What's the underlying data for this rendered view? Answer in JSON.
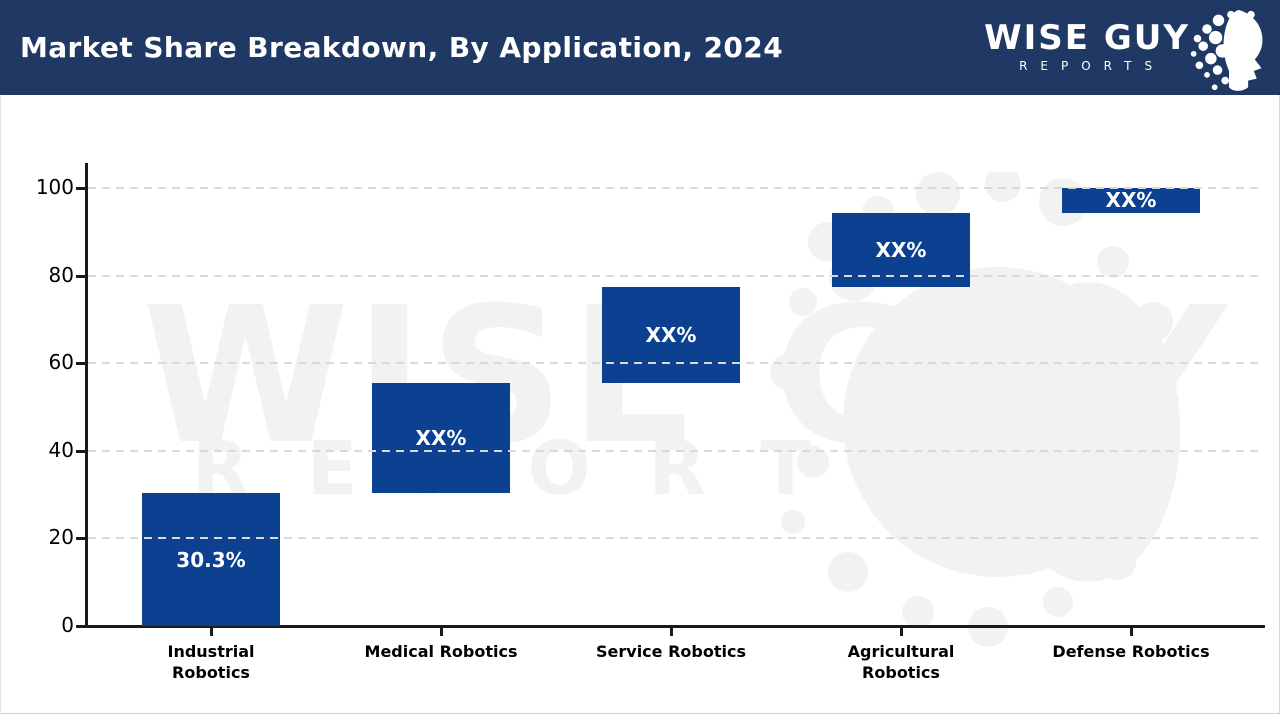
{
  "header": {
    "title": "Market Share Breakdown, By Application, 2024",
    "bg_color": "#1f3864",
    "logo": {
      "line1": "WISE GUY",
      "line2": "REPORTS",
      "head_icon": "dotted-head-profile"
    }
  },
  "watermark": {
    "line1": "WISE GUY",
    "line2": "REPORTS",
    "color": "#f2f2f3"
  },
  "chart_data": {
    "type": "bar",
    "subtype": "waterfall",
    "title": "Market Share Breakdown, By Application, 2024",
    "xlabel": "",
    "ylabel": "",
    "ylim": [
      0,
      105
    ],
    "y_ticks": [
      0,
      20,
      40,
      60,
      80,
      100
    ],
    "grid": "dashed-horizontal",
    "legend": "none",
    "bar_color": "#0c4192",
    "value_label_color": "#ffffff",
    "categories": [
      "Industrial Robotics",
      "Medical Robotics",
      "Service Robotics",
      "Agricultural Robotics",
      "Defense Robotics"
    ],
    "category_lines": [
      [
        "Industrial",
        "Robotics"
      ],
      [
        "Medical Robotics"
      ],
      [
        "Service Robotics"
      ],
      [
        "Agricultural",
        "Robotics"
      ],
      [
        "Defense Robotics"
      ]
    ],
    "segments": [
      {
        "category": "Industrial Robotics",
        "start": 0,
        "end": 30.3,
        "value_label": "30.3%"
      },
      {
        "category": "Medical Robotics",
        "start": 30.3,
        "end": 55.5,
        "value_label": "XX%"
      },
      {
        "category": "Service Robotics",
        "start": 55.5,
        "end": 77.4,
        "value_label": "XX%"
      },
      {
        "category": "Agricultural Robotics",
        "start": 77.4,
        "end": 94.4,
        "value_label": "XX%"
      },
      {
        "category": "Defense Robotics",
        "start": 94.4,
        "end": 100,
        "value_label": "XX%"
      }
    ]
  }
}
